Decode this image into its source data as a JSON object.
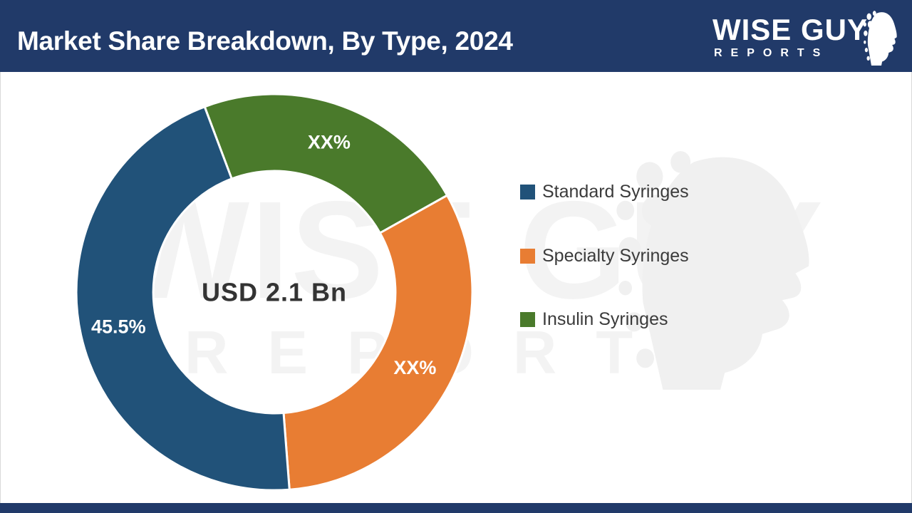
{
  "header": {
    "title": "Market Share Breakdown, By Type, 2024",
    "logo_line1": "WISE GUY",
    "logo_line2": "REPORTS"
  },
  "watermark": {
    "line1": "WISE GUY",
    "line2": "REPORTS"
  },
  "chart_data": {
    "type": "donut",
    "title": "Market Share Breakdown, By Type, 2024",
    "center_label": "USD 2.1 Bn",
    "units": "percent of market share",
    "direction": "clockwise",
    "start_angle_deg": -20.6,
    "inner_radius_ratio": 0.61,
    "segments": [
      {
        "label": "Insulin Syringes",
        "displayed_value": "XX%",
        "estimated_pct": 22.6,
        "color": "#4a7a2b"
      },
      {
        "label": "Specialty Syringes",
        "displayed_value": "XX%",
        "estimated_pct": 31.9,
        "color": "#e87d33"
      },
      {
        "label": "Standard Syringes",
        "displayed_value": "45.5%",
        "estimated_pct": 45.5,
        "color": "#215279"
      }
    ],
    "legend_position": "right",
    "legend": [
      {
        "label": "Standard Syringes",
        "color": "#215279"
      },
      {
        "label": "Specialty Syringes",
        "color": "#e87d33"
      },
      {
        "label": "Insulin Syringes",
        "color": "#4a7a2b"
      }
    ]
  },
  "colors": {
    "header_bg": "#213a69",
    "footer_bg": "#213a69",
    "watermark": "#f3f3f3",
    "legend_text": "#3b3b3b",
    "center_text": "#333333"
  }
}
